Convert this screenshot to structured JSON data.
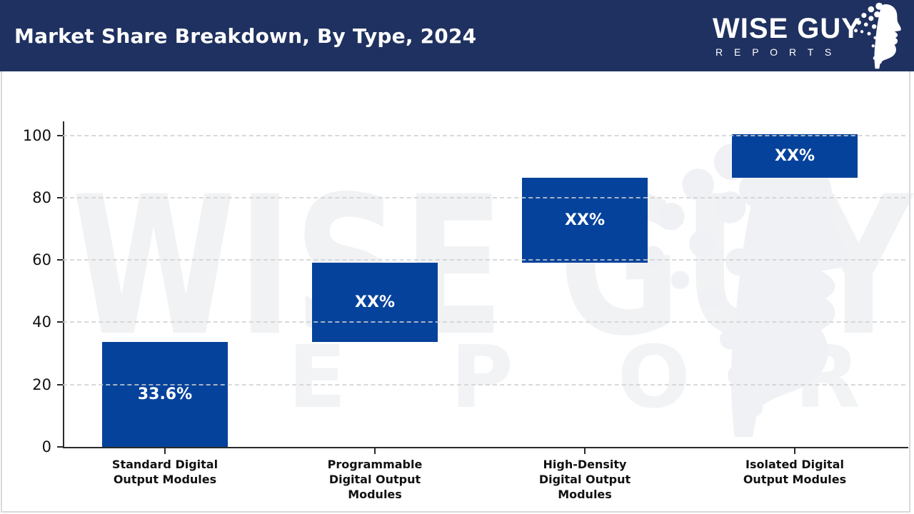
{
  "header": {
    "title": "Market Share Breakdown, By Type, 2024",
    "brand_name": "WISE GUY",
    "brand_sub": "R E P O R T S",
    "bg_color": "#1f3160"
  },
  "watermark": {
    "line1": "WISE GUY",
    "line2": "R E P O R T S"
  },
  "chart_data": {
    "type": "bar",
    "subtype": "waterfall-floating-bars",
    "title": "Market Share Breakdown, By Type, 2024",
    "categories": [
      [
        "Standard Digital",
        "Output Modules"
      ],
      [
        "Programmable",
        "Digital Output",
        "Modules"
      ],
      [
        "High-Density",
        "Digital Output",
        "Modules"
      ],
      [
        "Isolated Digital",
        "Output Modules"
      ]
    ],
    "segments": [
      {
        "name": "Standard Digital Output Modules",
        "start": 0,
        "end": 33.6,
        "label": "33.6%"
      },
      {
        "name": "Programmable Digital Output Modules",
        "start": 33.6,
        "end": 59.2,
        "label": "XX%"
      },
      {
        "name": "High-Density Digital Output Modules",
        "start": 59.2,
        "end": 86.5,
        "label": "XX%"
      },
      {
        "name": "Isolated Digital Output Modules",
        "start": 86.5,
        "end": 100.4,
        "label": "XX%"
      }
    ],
    "yticks": [
      0,
      20,
      40,
      60,
      80,
      100
    ],
    "ylim": [
      0,
      104.5
    ],
    "grid": true,
    "grid_style": "dashed",
    "legend": "none",
    "bar_color": "#05429b",
    "bar_label_color": "#ffffff",
    "axis_color": "#2a2a2a",
    "grid_color": "#d9d9d9"
  }
}
